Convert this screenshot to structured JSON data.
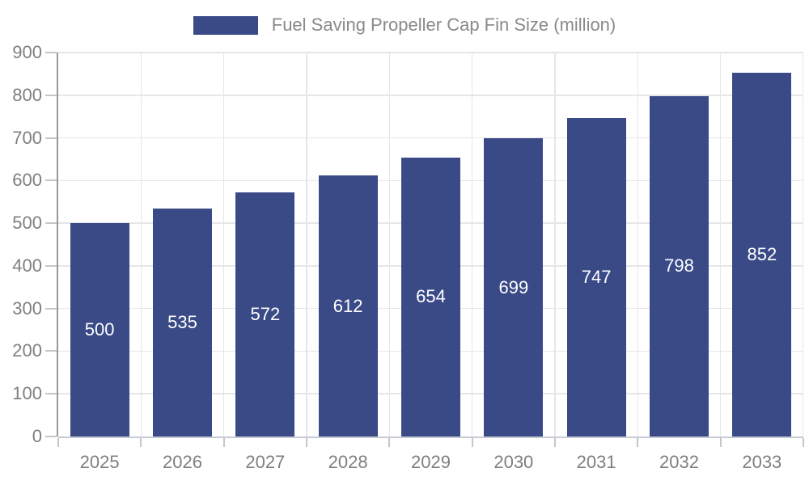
{
  "chart_data": {
    "type": "bar",
    "title": "Fuel Saving Propeller Cap Fin Size (million)",
    "legend": {
      "label": "Fuel Saving Propeller Cap Fin Size (million)",
      "position": "top"
    },
    "categories": [
      "2025",
      "2026",
      "2027",
      "2028",
      "2029",
      "2030",
      "2031",
      "2032",
      "2033"
    ],
    "series": [
      {
        "name": "Fuel Saving Propeller Cap Fin Size (million)",
        "values": [
          500,
          535,
          572,
          612,
          654,
          699,
          747,
          798,
          852
        ]
      }
    ],
    "bar_value_labels": [
      "500",
      "535",
      "572",
      "612",
      "654",
      "699",
      "747",
      "798",
      "852"
    ],
    "xlabel": "",
    "ylabel": "",
    "ylim": [
      0,
      900
    ],
    "yticks": [
      0,
      100,
      200,
      300,
      400,
      500,
      600,
      700,
      800,
      900
    ],
    "grid": true,
    "colors": {
      "bar": "#3a4a87",
      "grid": "#e6e6e6",
      "axis_line": "#999999",
      "x_axis_line": "#c5cad3",
      "tick": "#c6c6c6",
      "axis_text": "#7f7f7f",
      "legend_text": "#8a8a8a",
      "bar_label_text": "#ffffff",
      "background": "#ffffff"
    }
  }
}
